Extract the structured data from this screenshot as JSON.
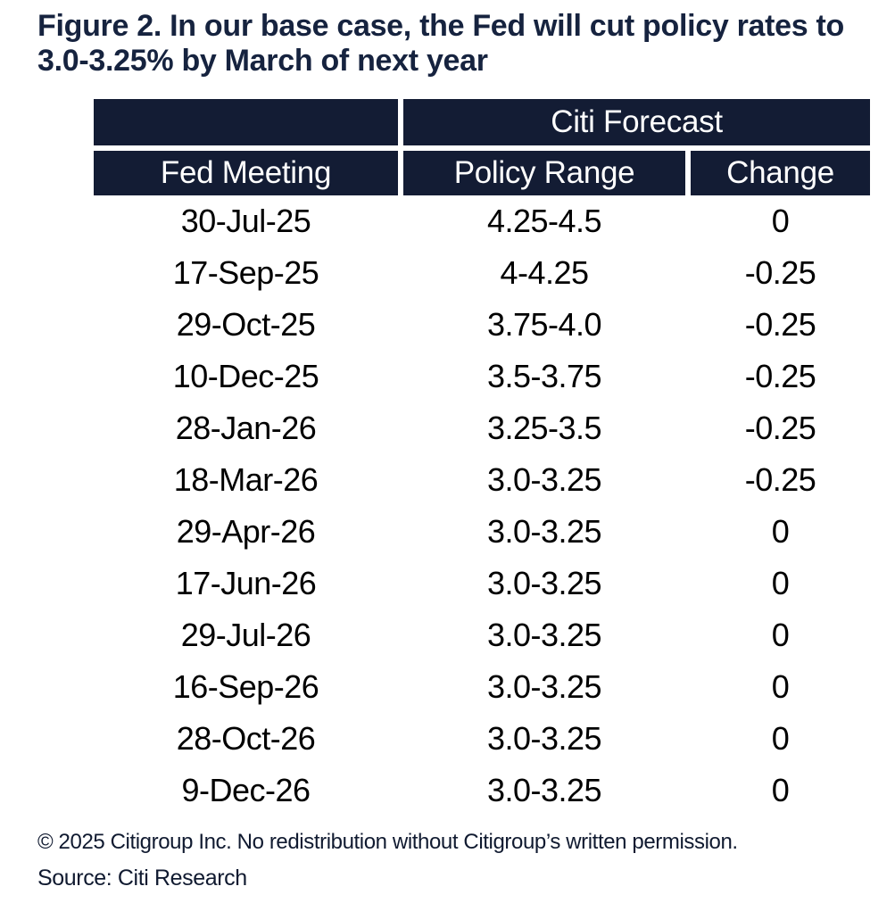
{
  "title_lines": [
    "Figure 2. In our base case, the Fed will cut policy rates to",
    "3.0-3.25% by March of next year"
  ],
  "colors": {
    "header_bg": "#131c34",
    "header_text": "#ffffff",
    "title_text": "#16233f",
    "body_text": "#000000"
  },
  "chart_data": {
    "type": "table",
    "title": "Figure 2. In our base case, the Fed will cut policy rates to 3.0-3.25% by March of next year",
    "group_header": "Citi Forecast",
    "group_header_spans": [
      "Policy Range",
      "Change"
    ],
    "columns": [
      "Fed Meeting",
      "Policy Range",
      "Change"
    ],
    "rows": [
      [
        "30-Jul-25",
        "4.25-4.5",
        "0"
      ],
      [
        "17-Sep-25",
        "4-4.25",
        "-0.25"
      ],
      [
        "29-Oct-25",
        "3.75-4.0",
        "-0.25"
      ],
      [
        "10-Dec-25",
        "3.5-3.75",
        "-0.25"
      ],
      [
        "28-Jan-26",
        "3.25-3.5",
        "-0.25"
      ],
      [
        "18-Mar-26",
        "3.0-3.25",
        "-0.25"
      ],
      [
        "29-Apr-26",
        "3.0-3.25",
        "0"
      ],
      [
        "17-Jun-26",
        "3.0-3.25",
        "0"
      ],
      [
        "29-Jul-26",
        "3.0-3.25",
        "0"
      ],
      [
        "16-Sep-26",
        "3.0-3.25",
        "0"
      ],
      [
        "28-Oct-26",
        "3.0-3.25",
        "0"
      ],
      [
        "9-Dec-26",
        "3.0-3.25",
        "0"
      ]
    ]
  },
  "footer": {
    "copyright": "© 2025 Citigroup Inc. No redistribution without Citigroup’s written permission.",
    "source": "Source: Citi Research"
  }
}
